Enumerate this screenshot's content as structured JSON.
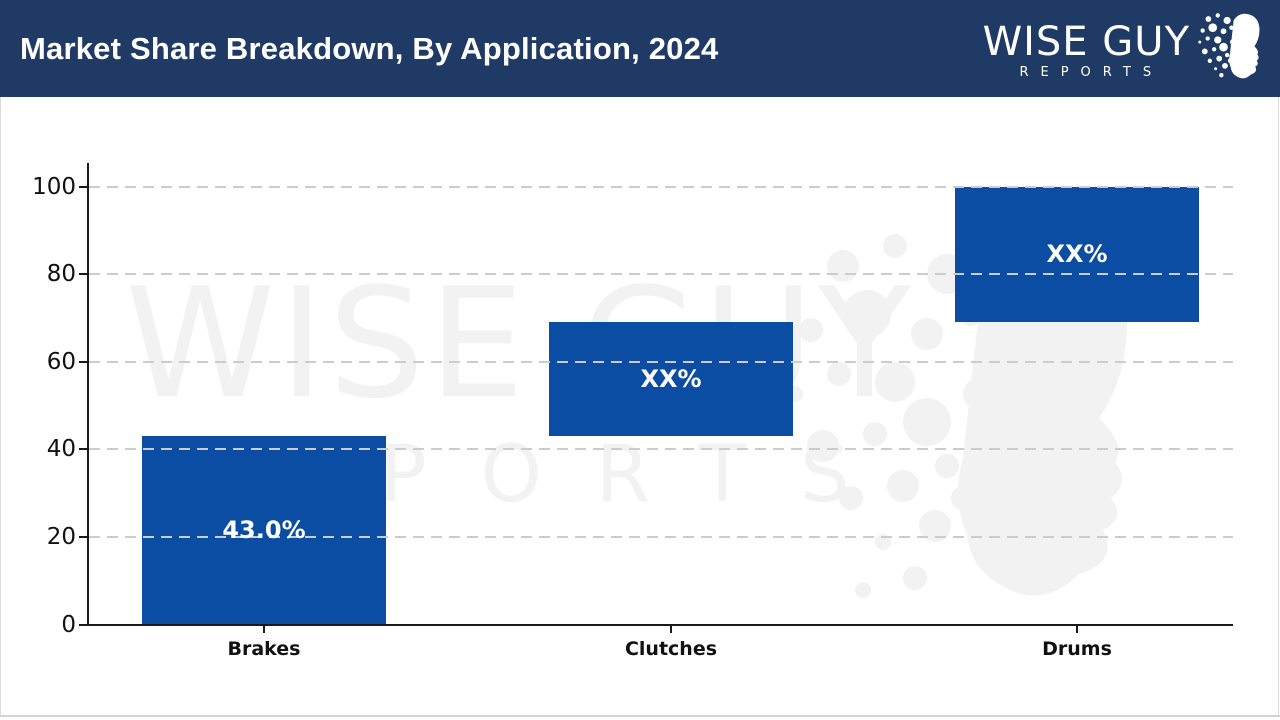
{
  "header": {
    "title": "Market Share Breakdown, By Application, 2024",
    "bg_color": "#203a66",
    "logo": {
      "line1": "WISE GUY",
      "line2": "REPORTS"
    }
  },
  "watermark": {
    "line1": "WISE GUY",
    "line2": "REPORTS"
  },
  "colors": {
    "header_bg": "#203a66",
    "bar_blue": "#0b4da2",
    "grid_gray": "#cccccc",
    "axis_black": "#1a1a1a",
    "watermark_gray": "#f2f2f3"
  },
  "chart_data": {
    "type": "bar",
    "subtype": "floating-waterfall",
    "title": "Market Share Breakdown, By Application, 2024",
    "categories": [
      "Brakes",
      "Clutches",
      "Drums"
    ],
    "segments": [
      {
        "category": "Brakes",
        "start": 0,
        "end": 43,
        "label": "43.0%"
      },
      {
        "category": "Clutches",
        "start": 43,
        "end": 69,
        "label": "XX%"
      },
      {
        "category": "Drums",
        "start": 69,
        "end": 100,
        "label": "XX%"
      }
    ],
    "ylim": [
      0,
      100
    ],
    "yticks": [
      0,
      20,
      40,
      60,
      80,
      100
    ],
    "xlabel": "",
    "ylabel": "",
    "grid": {
      "horizontal": true,
      "style": "dashed",
      "color": "#cccccc",
      "drawn_over_bars": true
    },
    "bar_color": "#0b4da2",
    "value_label_color": "#ffffff",
    "legend": "none"
  }
}
